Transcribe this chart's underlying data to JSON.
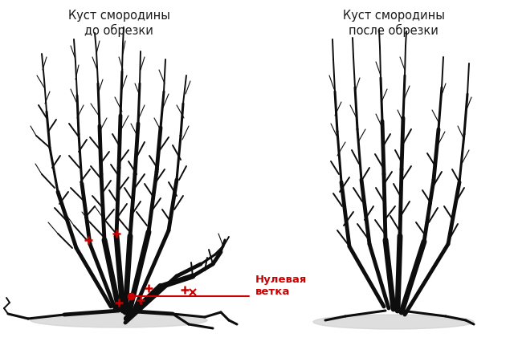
{
  "title_left": "Куст смородины\nдо обрезки",
  "title_right": "Куст смородины\nпосле обрезки",
  "annotation_text": "Нулевая\nветка",
  "annotation_color": "#cc0000",
  "bg_color": "#ffffff",
  "text_color": "#1a1a1a",
  "branch_color": "#0d0d0d",
  "title_fontsize": 10.5,
  "annotation_fontsize": 9.5,
  "fig_width": 6.4,
  "fig_height": 4.52
}
